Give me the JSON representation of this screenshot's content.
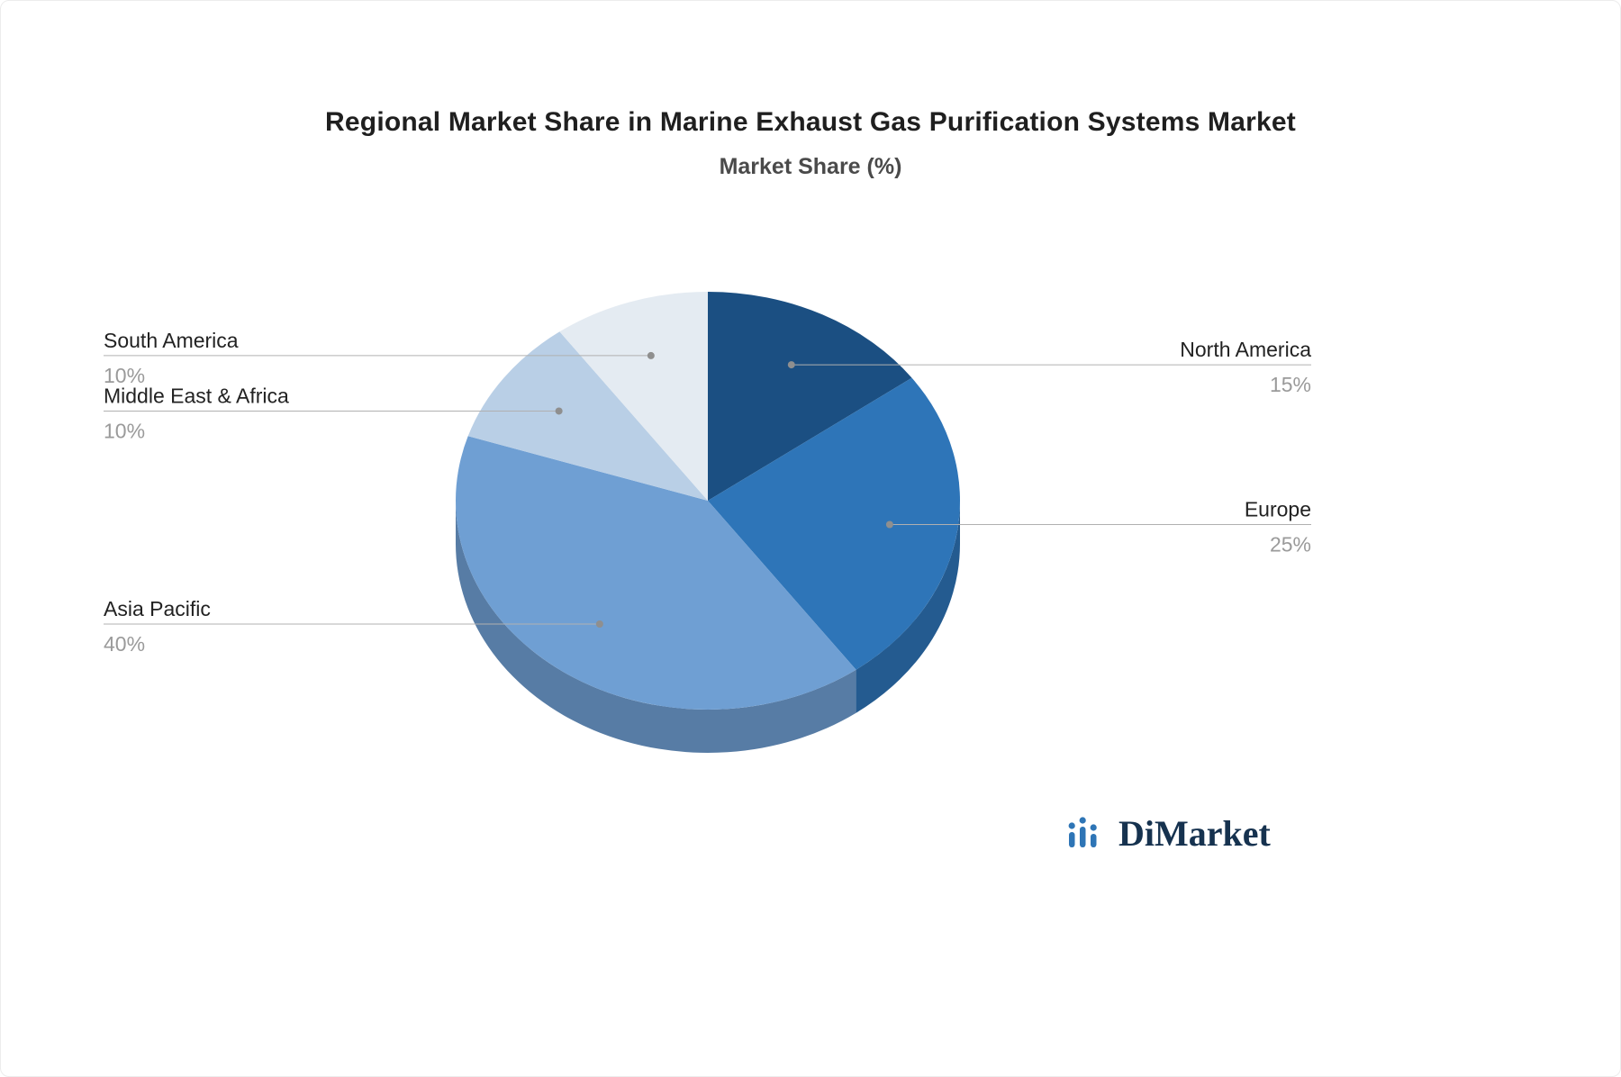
{
  "title": "Regional Market Share in Marine Exhaust Gas Purification Systems Market",
  "subtitle": "Market Share (%)",
  "chart_data": {
    "type": "pie",
    "title": "Regional Market Share in Marine Exhaust Gas Purification Systems Market",
    "subtitle": "Market Share (%)",
    "unit": "%",
    "start_angle_deg": 0,
    "direction": "clockwise",
    "effect": "3d",
    "legend_position": "none",
    "slices": [
      {
        "label": "North America",
        "value": 15,
        "display": "15%",
        "color": "#1b4f82",
        "side": "right"
      },
      {
        "label": "Europe",
        "value": 25,
        "display": "25%",
        "color": "#2e75b8",
        "side": "right"
      },
      {
        "label": "Asia Pacific",
        "value": 40,
        "display": "40%",
        "color": "#6f9fd3",
        "side": "left"
      },
      {
        "label": "Middle East & Africa",
        "value": 10,
        "display": "10%",
        "color": "#b9cfe6",
        "side": "left"
      },
      {
        "label": "South America",
        "value": 10,
        "display": "10%",
        "color": "#e4ebf2",
        "side": "left"
      }
    ],
    "label_color": "#222222",
    "value_color": "#9a9a9a",
    "leader_line_color": "#b0b0b0",
    "leader_dot_color": "#8f8f8f"
  },
  "logo": {
    "text": "DiMarket",
    "icon": "bar-chart-icon",
    "text_color": "#16324f",
    "icon_color": "#2e75b6"
  }
}
